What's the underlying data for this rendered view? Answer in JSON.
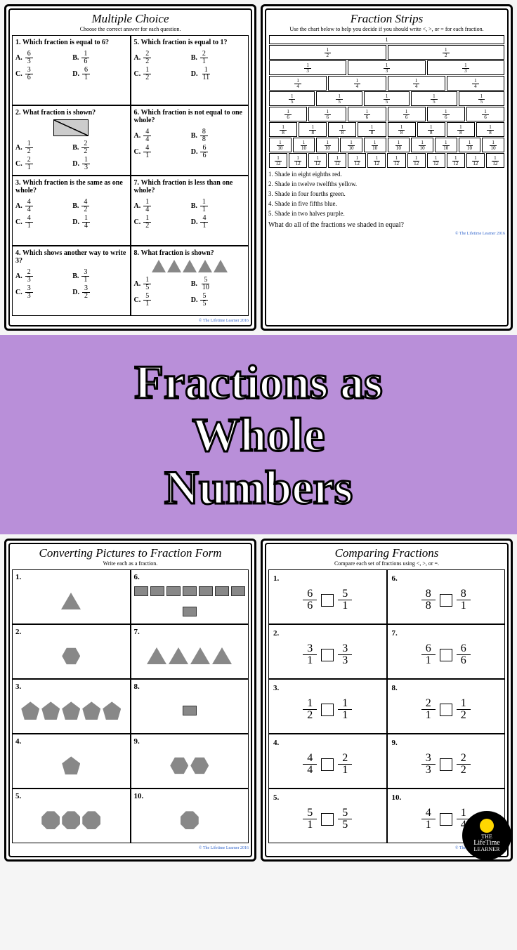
{
  "banner": {
    "line1": "Fractions as",
    "line2": "Whole",
    "line3": "Numbers",
    "bg": "#b98fd9"
  },
  "sheet1": {
    "title": "Multiple Choice",
    "sub": "Choose the correct answer for each question.",
    "q": [
      {
        "n": "1.",
        "t": "Which fraction is equal to 6?",
        "o": [
          [
            "A.",
            "6",
            "3"
          ],
          [
            "B.",
            "1",
            "6"
          ],
          [
            "C.",
            "3",
            "6"
          ],
          [
            "D.",
            "6",
            "1"
          ]
        ]
      },
      {
        "n": "5.",
        "t": "Which fraction is equal to 1?",
        "o": [
          [
            "A.",
            "2",
            "2"
          ],
          [
            "B.",
            "2",
            "1"
          ],
          [
            "C.",
            "1",
            "2"
          ],
          [
            "D.",
            "1",
            "11"
          ]
        ]
      },
      {
        "n": "2.",
        "t": "What fraction is shown?",
        "img": "rect",
        "o": [
          [
            "A.",
            "1",
            "2"
          ],
          [
            "B.",
            "2",
            "2"
          ],
          [
            "C.",
            "2",
            "1"
          ],
          [
            "D.",
            "1",
            "3"
          ]
        ]
      },
      {
        "n": "6.",
        "t": "Which fraction is not equal to one whole?",
        "o": [
          [
            "A.",
            "4",
            "4"
          ],
          [
            "B.",
            "8",
            "8"
          ],
          [
            "C.",
            "4",
            "1"
          ],
          [
            "D.",
            "6",
            "6"
          ]
        ]
      },
      {
        "n": "3.",
        "t": "Which fraction is the same as one whole?",
        "o": [
          [
            "A.",
            "4",
            "4"
          ],
          [
            "B.",
            "4",
            "2"
          ],
          [
            "C.",
            "4",
            "1"
          ],
          [
            "D.",
            "1",
            "4"
          ]
        ]
      },
      {
        "n": "7.",
        "t": "Which fraction is less than one whole?",
        "o": [
          [
            "A.",
            "1",
            "4"
          ],
          [
            "B.",
            "1",
            "1"
          ],
          [
            "C.",
            "1",
            "2"
          ],
          [
            "D.",
            "4",
            "1"
          ]
        ]
      },
      {
        "n": "4.",
        "t": "Which shows another way to write 3?",
        "o": [
          [
            "A.",
            "2",
            "3"
          ],
          [
            "B.",
            "3",
            "1"
          ],
          [
            "C.",
            "3",
            "3"
          ],
          [
            "D.",
            "3",
            "2"
          ]
        ]
      },
      {
        "n": "8.",
        "t": "What fraction is shown?",
        "img": "tris",
        "o": [
          [
            "A.",
            "1",
            "5"
          ],
          [
            "B.",
            "5",
            "10"
          ],
          [
            "C.",
            "5",
            "1"
          ],
          [
            "D.",
            "5",
            "5"
          ]
        ]
      }
    ],
    "footer": "© The Lifetime Learner 2016"
  },
  "sheet2": {
    "title": "Fraction Strips",
    "sub": "Use the chart below to help you decide if you should write <, >, or = for each fraction.",
    "strips": [
      [
        "1"
      ],
      [
        "1/2",
        "1/2"
      ],
      [
        "1/3",
        "1/3",
        "1/3"
      ],
      [
        "1/4",
        "1/4",
        "1/4",
        "1/4"
      ],
      [
        "1/5",
        "1/5",
        "1/5",
        "1/5",
        "1/5"
      ],
      [
        "1/6",
        "1/6",
        "1/6",
        "1/6",
        "1/6",
        "1/6"
      ],
      [
        "1/8",
        "1/8",
        "1/8",
        "1/8",
        "1/8",
        "1/8",
        "1/8",
        "1/8"
      ],
      [
        "1/10",
        "1/10",
        "1/10",
        "1/10",
        "1/10",
        "1/10",
        "1/10",
        "1/10",
        "1/10",
        "1/10"
      ],
      [
        "1/12",
        "1/12",
        "1/12",
        "1/12",
        "1/12",
        "1/12",
        "1/12",
        "1/12",
        "1/12",
        "1/12",
        "1/12",
        "1/12"
      ]
    ],
    "instr": [
      "1. Shade in eight eighths red.",
      "2. Shade in twelve twelfths yellow.",
      "3. Shade in four fourths green.",
      "4. Shade in five fifths blue.",
      "5. Shade in two halves purple."
    ],
    "q": "What do all of the fractions we shaded in equal?",
    "footer": "© The Lifetime Learner 2016"
  },
  "sheet3": {
    "title": "Converting Pictures to Fraction Form",
    "sub": "Write each as a fraction.",
    "items": [
      {
        "n": "1.",
        "s": "tri",
        "c": 1
      },
      {
        "n": "6.",
        "s": "sq",
        "c": 8
      },
      {
        "n": "2.",
        "s": "hex",
        "c": 1
      },
      {
        "n": "7.",
        "s": "tri",
        "c": 4
      },
      {
        "n": "3.",
        "s": "pent",
        "c": 5
      },
      {
        "n": "8.",
        "s": "sq",
        "c": 1
      },
      {
        "n": "4.",
        "s": "pent",
        "c": 1
      },
      {
        "n": "9.",
        "s": "hex",
        "c": 2
      },
      {
        "n": "5.",
        "s": "oct",
        "c": 3
      },
      {
        "n": "10.",
        "s": "oct",
        "c": 1
      }
    ],
    "footer": "© The Lifetime Learner 2016"
  },
  "sheet4": {
    "title": "Comparing Fractions",
    "sub": "Compare each set of fractions using <, >, or =.",
    "items": [
      {
        "n": "1.",
        "a": [
          "6",
          "6"
        ],
        "b": [
          "5",
          "1"
        ]
      },
      {
        "n": "6.",
        "a": [
          "8",
          "8"
        ],
        "b": [
          "8",
          "1"
        ]
      },
      {
        "n": "2.",
        "a": [
          "3",
          "1"
        ],
        "b": [
          "3",
          "3"
        ]
      },
      {
        "n": "7.",
        "a": [
          "6",
          "1"
        ],
        "b": [
          "6",
          "6"
        ]
      },
      {
        "n": "3.",
        "a": [
          "1",
          "2"
        ],
        "b": [
          "1",
          "1"
        ]
      },
      {
        "n": "8.",
        "a": [
          "2",
          "1"
        ],
        "b": [
          "1",
          "2"
        ]
      },
      {
        "n": "4.",
        "a": [
          "4",
          "4"
        ],
        "b": [
          "2",
          "1"
        ]
      },
      {
        "n": "9.",
        "a": [
          "3",
          "3"
        ],
        "b": [
          "2",
          "2"
        ]
      },
      {
        "n": "5.",
        "a": [
          "5",
          "1"
        ],
        "b": [
          "5",
          "5"
        ]
      },
      {
        "n": "10.",
        "a": [
          "4",
          "1"
        ],
        "b": [
          "1",
          "4"
        ]
      }
    ],
    "footer": "© The Lifetime Learner 2016"
  },
  "logo": {
    "brand": "THE",
    "name1": "LifeTime",
    "name2": "LEARNER"
  }
}
